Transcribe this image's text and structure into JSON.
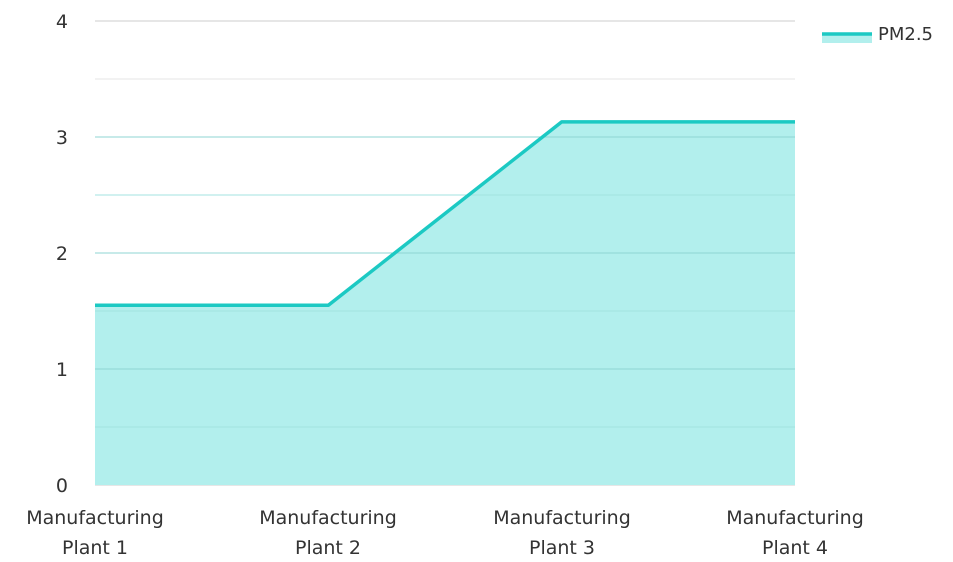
{
  "chart_data": {
    "type": "area",
    "categories": [
      [
        "Manufacturing",
        "Plant 1"
      ],
      [
        "Manufacturing",
        "Plant 2"
      ],
      [
        "Manufacturing",
        "Plant 3"
      ],
      [
        "Manufacturing",
        "Plant 4"
      ]
    ],
    "series": [
      {
        "name": "PM2.5",
        "values": [
          1.55,
          1.55,
          3.13,
          3.13
        ]
      }
    ],
    "ylim": [
      0,
      4
    ],
    "yticks": [
      0,
      1,
      2,
      3,
      4
    ],
    "grid": true,
    "legend_position": "top-right",
    "colors": {
      "line": "#1cc9c3",
      "fill": "#b2efed",
      "grid_major": "#cccccc",
      "grid_minor": "#e4e4e4"
    }
  }
}
